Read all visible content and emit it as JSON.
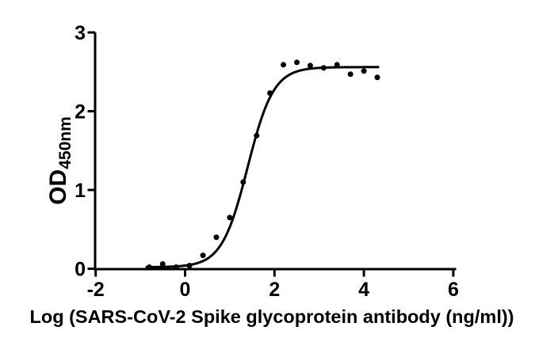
{
  "chart_data": {
    "type": "scatter",
    "title": "",
    "xlabel": "Log (SARS-CoV-2 Spike glycoprotein antibody (ng/ml))",
    "ylabel_main": "OD",
    "ylabel_sub": "450nm",
    "xlim": [
      -2,
      6
    ],
    "ylim": [
      0,
      3
    ],
    "x_ticks": [
      -2,
      0,
      2,
      4,
      6
    ],
    "y_ticks": [
      0,
      1,
      2,
      3
    ],
    "grid": false,
    "legend": "none",
    "marker_color": "#000000",
    "line_color": "#000000",
    "points": {
      "x": [
        -0.8,
        -0.5,
        -0.2,
        0.1,
        0.4,
        0.7,
        1.0,
        1.3,
        1.6,
        1.9,
        2.2,
        2.5,
        2.8,
        3.1,
        3.4,
        3.7,
        4.0,
        4.3
      ],
      "y": [
        0.02,
        0.06,
        0.02,
        0.04,
        0.17,
        0.4,
        0.65,
        1.1,
        1.69,
        2.23,
        2.59,
        2.62,
        2.58,
        2.55,
        2.59,
        2.47,
        2.51,
        2.43
      ]
    },
    "fit_curve": {
      "model": "4PL-sigmoid",
      "bottom": 0.02,
      "top": 2.56,
      "logEC50": 1.4,
      "hill": 1.5,
      "x_start": -0.86,
      "x_end": 4.32
    }
  }
}
